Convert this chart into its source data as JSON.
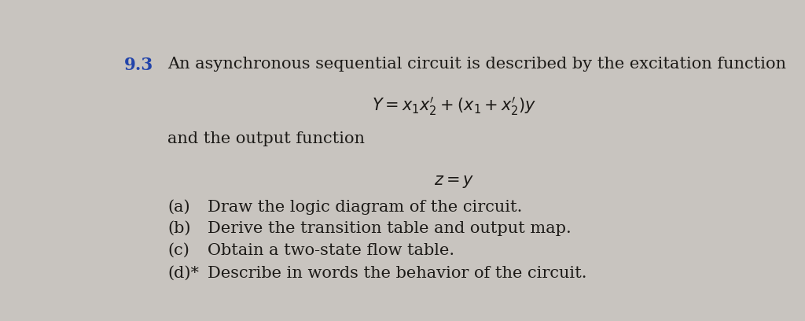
{
  "background_color": "#c8c4bf",
  "problem_number": "9.3",
  "intro_text": "An asynchronous sequential circuit is described by the excitation function",
  "equation1": "$Y = x_1x_2^{\\prime} + (x_1 + x_2^{\\prime})y$",
  "middle_text": "and the output function",
  "equation2": "$z = y$",
  "items_label": [
    "(a)",
    "(b)",
    "(c)",
    "(d)*"
  ],
  "items_text": [
    "Draw the logic diagram of the circuit.",
    "Derive the transition table and output map.",
    "Obtain a two-state flow table.",
    "Describe in words the behavior of the circuit."
  ],
  "text_color": "#1c1a17",
  "number_color": "#2244aa",
  "font_size_main": 15,
  "font_size_eq": 15,
  "font_size_number": 15.5
}
